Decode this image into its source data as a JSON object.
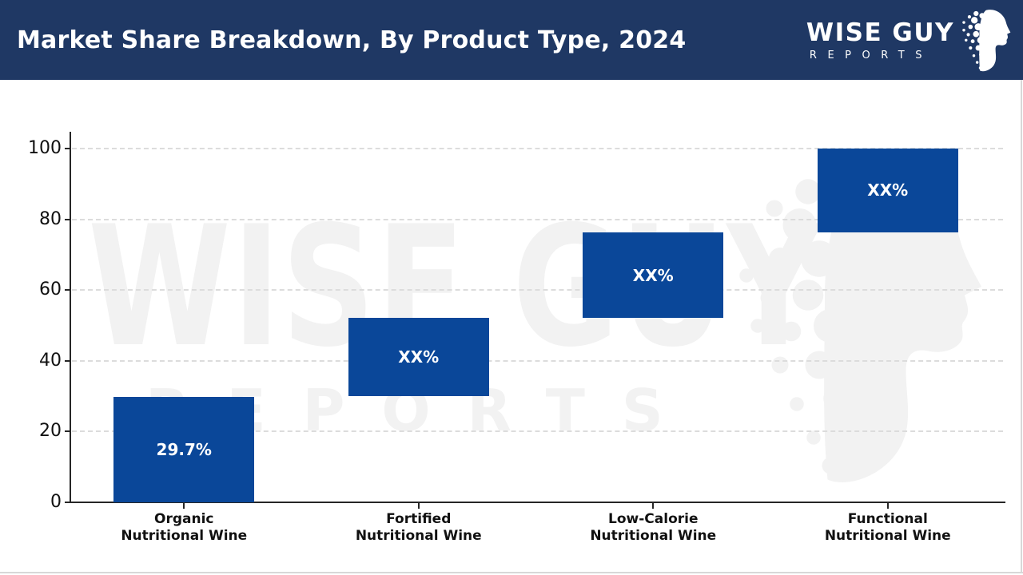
{
  "header": {
    "title": "Market Share Breakdown, By Product Type, 2024",
    "logo": {
      "primary": "WISE GUY",
      "secondary": "REPORTS"
    }
  },
  "watermark": {
    "primary": "WISE GUY",
    "secondary": "REPORTS"
  },
  "colors": {
    "page_bg": "#ffffff",
    "header_bg": "#1f3864",
    "bar_fill": "#0a4799",
    "bar_label_text": "#ffffff",
    "axis": "#262626",
    "gridline": "#dcdcdc",
    "tick_label": "#111111",
    "watermark": "#f2f2f2",
    "border_line": "#d8d8d8"
  },
  "chart_data": {
    "type": "bar",
    "subtype": "waterfall",
    "title": "Market Share Breakdown, By Product Type, 2024",
    "unit": "percent",
    "categories": [
      {
        "line1": "Organic",
        "line2": "Nutritional Wine"
      },
      {
        "line1": "Fortified",
        "line2": "Nutritional Wine"
      },
      {
        "line1": "Low-Calorie",
        "line2": "Nutritional Wine"
      },
      {
        "line1": "Functional",
        "line2": "Nutritional Wine"
      }
    ],
    "segments": [
      {
        "label": "29.7%",
        "from": 0,
        "to": 29.7
      },
      {
        "label": "XX%",
        "from": 30,
        "to": 52.1
      },
      {
        "label": "XX%",
        "from": 52.1,
        "to": 76.3
      },
      {
        "label": "XX%",
        "from": 76.3,
        "to": 100
      }
    ],
    "yticks": [
      0,
      20,
      40,
      60,
      80,
      100
    ],
    "ylim": [
      0,
      100
    ],
    "xlabel": "",
    "ylabel": "",
    "grid": {
      "horizontal": true,
      "style": "dashed"
    },
    "legend": null
  }
}
